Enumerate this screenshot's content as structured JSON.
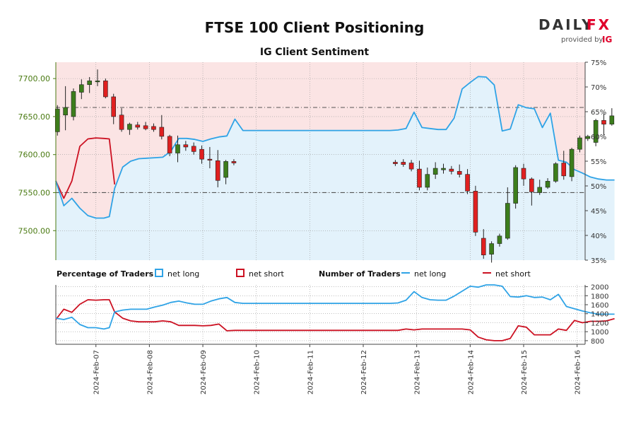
{
  "header": {
    "title": "FTSE 100 Client Positioning",
    "subtitle": "IG Client Sentiment"
  },
  "logo": {
    "wordmark_left": "DAILY",
    "wordmark_right": "FX",
    "provided_by": "provided by",
    "ig": "IG"
  },
  "legend": {
    "pct_heading": "Percentage of Traders",
    "pct_long": "net long",
    "pct_short": "net short",
    "num_heading": "Number of Traders",
    "num_long": "net long",
    "num_short": "net short"
  },
  "colors": {
    "long": "#2fa3e6",
    "short": "#cc1122",
    "long_fill": "#e3f2fb",
    "short_fill": "#fbe4e4",
    "bull": "#3c7d1c",
    "bear": "#e02020",
    "price_axis": "#4a7a12"
  },
  "chart_data": [
    {
      "type": "candlestick",
      "name": "price",
      "x_ticks": [
        "2024-Feb-07",
        "2024-Feb-08",
        "2024-Feb-09",
        "2024-Feb-10",
        "2024-Feb-11",
        "2024-Feb-12",
        "2024-Feb-13",
        "2024-Feb-14",
        "2024-Feb-15",
        "2024-Feb-16"
      ],
      "x_range": [
        -0.75,
        9.15
      ],
      "y_ticks": [
        7500,
        7550,
        7600,
        7650,
        7700
      ],
      "y_tick_labels": [
        "7500.00",
        "7550.00",
        "7600.00",
        "7650.00",
        "7700.00"
      ],
      "ylim": [
        7461.2,
        7721.5
      ],
      "right_axis": {
        "ticks": [
          35,
          40,
          45,
          50,
          55,
          60,
          65,
          70,
          75
        ],
        "tick_labels": [
          "35%",
          "40%",
          "45%",
          "50%",
          "55%",
          "60%",
          "65%",
          "70%",
          "75%"
        ],
        "ylim": [
          35,
          75
        ]
      },
      "reference_lines": [
        {
          "label": "7550",
          "axis": "left",
          "value": 7550
        },
        {
          "label": "7662",
          "axis": "left",
          "value": 7662
        }
      ],
      "candles": [
        {
          "x": -0.72,
          "o": 7630,
          "h": 7665,
          "l": 7625,
          "c": 7660
        },
        {
          "x": -0.57,
          "o": 7652,
          "h": 7690,
          "l": 7632,
          "c": 7662
        },
        {
          "x": -0.42,
          "o": 7650,
          "h": 7687,
          "l": 7645,
          "c": 7683
        },
        {
          "x": -0.27,
          "o": 7682,
          "h": 7699,
          "l": 7673,
          "c": 7692
        },
        {
          "x": -0.12,
          "o": 7692,
          "h": 7702,
          "l": 7681,
          "c": 7697
        },
        {
          "x": 0.03,
          "o": 7697,
          "h": 7712,
          "l": 7690,
          "c": 7697
        },
        {
          "x": 0.18,
          "o": 7697,
          "h": 7700,
          "l": 7674,
          "c": 7676
        },
        {
          "x": 0.33,
          "o": 7676,
          "h": 7680,
          "l": 7640,
          "c": 7650
        },
        {
          "x": 0.48,
          "o": 7652,
          "h": 7661,
          "l": 7630,
          "c": 7633
        },
        {
          "x": 0.63,
          "o": 7633,
          "h": 7642,
          "l": 7626,
          "c": 7640
        },
        {
          "x": 0.78,
          "o": 7639,
          "h": 7643,
          "l": 7633,
          "c": 7636
        },
        {
          "x": 0.93,
          "o": 7638,
          "h": 7643,
          "l": 7632,
          "c": 7634
        },
        {
          "x": 1.08,
          "o": 7637,
          "h": 7641,
          "l": 7630,
          "c": 7633
        },
        {
          "x": 1.23,
          "o": 7636,
          "h": 7652,
          "l": 7620,
          "c": 7624
        },
        {
          "x": 1.38,
          "o": 7624,
          "h": 7626,
          "l": 7598,
          "c": 7602
        },
        {
          "x": 1.53,
          "o": 7602,
          "h": 7625,
          "l": 7590,
          "c": 7613
        },
        {
          "x": 1.68,
          "o": 7613,
          "h": 7618,
          "l": 7605,
          "c": 7610
        },
        {
          "x": 1.83,
          "o": 7611,
          "h": 7616,
          "l": 7600,
          "c": 7604
        },
        {
          "x": 1.98,
          "o": 7607,
          "h": 7612,
          "l": 7588,
          "c": 7594
        },
        {
          "x": 2.13,
          "o": 7594,
          "h": 7610,
          "l": 7582,
          "c": 7593
        },
        {
          "x": 2.28,
          "o": 7592,
          "h": 7606,
          "l": 7557,
          "c": 7566
        },
        {
          "x": 2.43,
          "o": 7570,
          "h": 7593,
          "l": 7561,
          "c": 7591
        },
        {
          "x": 2.58,
          "o": 7591,
          "h": 7594,
          "l": 7586,
          "c": 7589
        },
        {
          "x": 5.6,
          "o": 7590,
          "h": 7593,
          "l": 7585,
          "c": 7588
        },
        {
          "x": 5.75,
          "o": 7590,
          "h": 7594,
          "l": 7584,
          "c": 7587
        },
        {
          "x": 5.9,
          "o": 7589,
          "h": 7593,
          "l": 7578,
          "c": 7581
        },
        {
          "x": 6.05,
          "o": 7581,
          "h": 7592,
          "l": 7553,
          "c": 7557
        },
        {
          "x": 6.2,
          "o": 7557,
          "h": 7583,
          "l": 7553,
          "c": 7574
        },
        {
          "x": 6.35,
          "o": 7574,
          "h": 7590,
          "l": 7568,
          "c": 7582
        },
        {
          "x": 6.5,
          "o": 7580,
          "h": 7588,
          "l": 7575,
          "c": 7582
        },
        {
          "x": 6.65,
          "o": 7581,
          "h": 7585,
          "l": 7574,
          "c": 7578
        },
        {
          "x": 6.8,
          "o": 7578,
          "h": 7587,
          "l": 7570,
          "c": 7574
        },
        {
          "x": 6.95,
          "o": 7574,
          "h": 7581,
          "l": 7548,
          "c": 7552
        },
        {
          "x": 7.1,
          "o": 7552,
          "h": 7559,
          "l": 7493,
          "c": 7498
        },
        {
          "x": 7.25,
          "o": 7490,
          "h": 7502,
          "l": 7463,
          "c": 7468
        },
        {
          "x": 7.4,
          "o": 7469,
          "h": 7486,
          "l": 7458,
          "c": 7483
        },
        {
          "x": 7.55,
          "o": 7483,
          "h": 7496,
          "l": 7479,
          "c": 7493
        },
        {
          "x": 7.7,
          "o": 7490,
          "h": 7557,
          "l": 7488,
          "c": 7536
        },
        {
          "x": 7.85,
          "o": 7536,
          "h": 7586,
          "l": 7529,
          "c": 7583
        },
        {
          "x": 8.0,
          "o": 7582,
          "h": 7588,
          "l": 7559,
          "c": 7568
        },
        {
          "x": 8.15,
          "o": 7568,
          "h": 7570,
          "l": 7533,
          "c": 7551
        },
        {
          "x": 8.3,
          "o": 7550,
          "h": 7567,
          "l": 7547,
          "c": 7557
        },
        {
          "x": 8.45,
          "o": 7557,
          "h": 7569,
          "l": 7555,
          "c": 7565
        },
        {
          "x": 8.6,
          "o": 7565,
          "h": 7590,
          "l": 7563,
          "c": 7588
        },
        {
          "x": 8.75,
          "o": 7589,
          "h": 7605,
          "l": 7567,
          "c": 7572
        },
        {
          "x": 8.9,
          "o": 7571,
          "h": 7609,
          "l": 7565,
          "c": 7607
        },
        {
          "x": 9.05,
          "o": 7607,
          "h": 7625,
          "l": 7603,
          "c": 7622
        },
        {
          "x": 9.2,
          "o": 7621,
          "h": 7626,
          "l": 7618,
          "c": 7624
        },
        {
          "x": 9.35,
          "o": 7616,
          "h": 7647,
          "l": 7611,
          "c": 7645
        },
        {
          "x": 9.5,
          "o": 7645,
          "h": 7654,
          "l": 7625,
          "c": 7640
        },
        {
          "x": 9.65,
          "o": 7640,
          "h": 7661,
          "l": 7638,
          "c": 7651
        }
      ]
    },
    {
      "type": "line",
      "name": "net long percentage",
      "axis": "right",
      "x": [
        -0.75,
        -0.6,
        -0.45,
        -0.3,
        -0.15,
        0.0,
        0.15,
        0.25,
        0.35,
        0.5,
        0.65,
        0.8,
        0.95,
        1.1,
        1.25,
        1.4,
        1.55,
        1.7,
        1.85,
        2.0,
        2.15,
        2.3,
        2.45,
        2.6,
        2.75,
        3.5,
        4.5,
        5.5,
        5.65,
        5.8,
        5.95,
        6.1,
        6.25,
        6.4,
        6.55,
        6.7,
        6.85,
        7.0,
        7.15,
        7.3,
        7.45,
        7.6,
        7.75,
        7.9,
        8.05,
        8.2,
        8.35,
        8.5,
        8.65,
        8.8,
        8.95,
        9.1,
        9.25,
        9.4,
        9.55,
        9.7
      ],
      "values": [
        51.0,
        46.0,
        47.5,
        45.5,
        44.0,
        43.5,
        43.5,
        43.8,
        49.5,
        53.8,
        55.0,
        55.5,
        55.6,
        55.7,
        55.8,
        57.0,
        59.6,
        59.6,
        59.4,
        59.0,
        59.5,
        59.9,
        60.1,
        63.5,
        61.2,
        61.2,
        61.2,
        61.2,
        61.3,
        61.6,
        64.9,
        61.8,
        61.6,
        61.4,
        61.4,
        63.7,
        69.6,
        70.9,
        72.1,
        72.0,
        70.4,
        61.1,
        61.5,
        66.4,
        65.8,
        65.6,
        61.8,
        64.7,
        55.2,
        54.8,
        53.3,
        52.6,
        51.8,
        51.4,
        51.2,
        51.2
      ],
      "ylim": [
        35,
        75
      ]
    },
    {
      "type": "line",
      "name": "net short percentage",
      "axis": "right",
      "x": [
        -0.75,
        -0.6,
        -0.45,
        -0.3,
        -0.15,
        0.0,
        0.15,
        0.25,
        0.35
      ],
      "values": [
        51.0,
        47.5,
        51.0,
        58.0,
        59.5,
        59.7,
        59.6,
        59.5,
        50.3
      ],
      "ylim": [
        35,
        75
      ]
    },
    {
      "type": "line",
      "name": "number of traders net long",
      "y_ticks": [
        800,
        1000,
        1200,
        1400,
        1600,
        1800,
        2000
      ],
      "ylim": [
        720,
        2040
      ],
      "x": [
        -0.75,
        -0.6,
        -0.45,
        -0.3,
        -0.15,
        0.0,
        0.15,
        0.25,
        0.35,
        0.5,
        0.65,
        0.8,
        0.95,
        1.1,
        1.25,
        1.4,
        1.55,
        1.7,
        1.85,
        2.0,
        2.15,
        2.3,
        2.45,
        2.6,
        2.75,
        3.5,
        4.5,
        5.5,
        5.65,
        5.8,
        5.95,
        6.1,
        6.25,
        6.4,
        6.55,
        6.7,
        6.85,
        7.0,
        7.15,
        7.3,
        7.45,
        7.6,
        7.75,
        7.9,
        8.05,
        8.2,
        8.35,
        8.5,
        8.65,
        8.8,
        8.95,
        9.1,
        9.25,
        9.4,
        9.55,
        9.7
      ],
      "values": [
        1300,
        1270,
        1320,
        1160,
        1090,
        1090,
        1060,
        1090,
        1440,
        1480,
        1500,
        1500,
        1500,
        1550,
        1590,
        1650,
        1680,
        1640,
        1610,
        1610,
        1680,
        1730,
        1760,
        1650,
        1630,
        1630,
        1630,
        1630,
        1640,
        1700,
        1890,
        1760,
        1710,
        1700,
        1700,
        1790,
        1900,
        2010,
        1990,
        2040,
        2040,
        2010,
        1780,
        1770,
        1800,
        1760,
        1770,
        1710,
        1830,
        1560,
        1510,
        1460,
        1420,
        1390,
        1390,
        1390
      ]
    },
    {
      "type": "line",
      "name": "number of traders net short",
      "x": [
        -0.75,
        -0.6,
        -0.45,
        -0.3,
        -0.15,
        0.0,
        0.15,
        0.25,
        0.35,
        0.5,
        0.65,
        0.8,
        0.95,
        1.1,
        1.25,
        1.4,
        1.55,
        1.7,
        1.85,
        2.0,
        2.15,
        2.3,
        2.45,
        2.6,
        2.75,
        3.5,
        4.5,
        5.5,
        5.65,
        5.8,
        5.95,
        6.1,
        6.25,
        6.4,
        6.55,
        6.7,
        6.85,
        7.0,
        7.15,
        7.3,
        7.45,
        7.6,
        7.75,
        7.9,
        8.05,
        8.2,
        8.35,
        8.5,
        8.65,
        8.8,
        8.95,
        9.1,
        9.25,
        9.4,
        9.55,
        9.7
      ],
      "values": [
        1270,
        1500,
        1430,
        1610,
        1710,
        1700,
        1710,
        1710,
        1440,
        1300,
        1240,
        1220,
        1220,
        1220,
        1240,
        1220,
        1140,
        1140,
        1140,
        1130,
        1140,
        1170,
        1020,
        1030,
        1030,
        1030,
        1030,
        1030,
        1030,
        1060,
        1040,
        1060,
        1060,
        1060,
        1060,
        1060,
        1060,
        1040,
        880,
        820,
        800,
        800,
        850,
        1130,
        1100,
        930,
        930,
        930,
        1060,
        1030,
        1250,
        1200,
        1230,
        1230,
        1240,
        1290
      ]
    }
  ]
}
